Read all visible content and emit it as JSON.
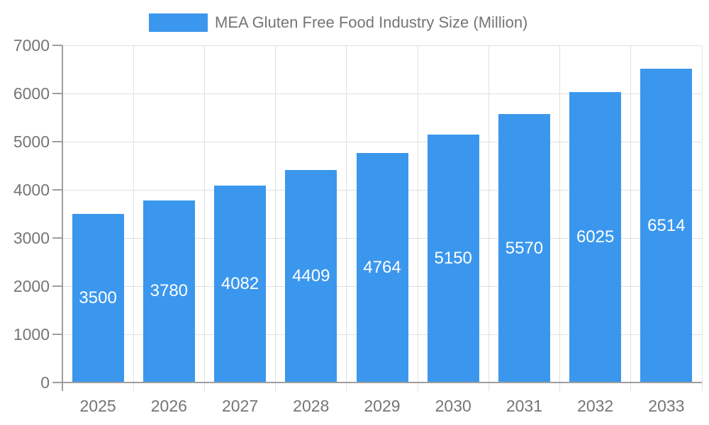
{
  "chart_data": {
    "type": "bar",
    "title": "MEA Gluten Free Food Industry Size (Million)",
    "categories": [
      "2025",
      "2026",
      "2027",
      "2028",
      "2029",
      "2030",
      "2031",
      "2032",
      "2033"
    ],
    "values": [
      3500,
      3780,
      4082,
      4409,
      4764,
      5150,
      5570,
      6025,
      6514
    ],
    "ytick_labels": [
      "0",
      "1000",
      "2000",
      "3000",
      "4000",
      "5000",
      "6000",
      "7000"
    ],
    "ylim": [
      0,
      7000
    ],
    "ytick_step": 1000,
    "grid": true,
    "legend_position": "top-center",
    "value_labels": "inside-center",
    "colors": {
      "bar": "#3B97ED",
      "value_label": "#FFFFFF",
      "axis_label": "#757575",
      "grid_line": "#E0E0E0",
      "axis_line": "#9E9E9E",
      "background": "#FFFFFF"
    }
  }
}
